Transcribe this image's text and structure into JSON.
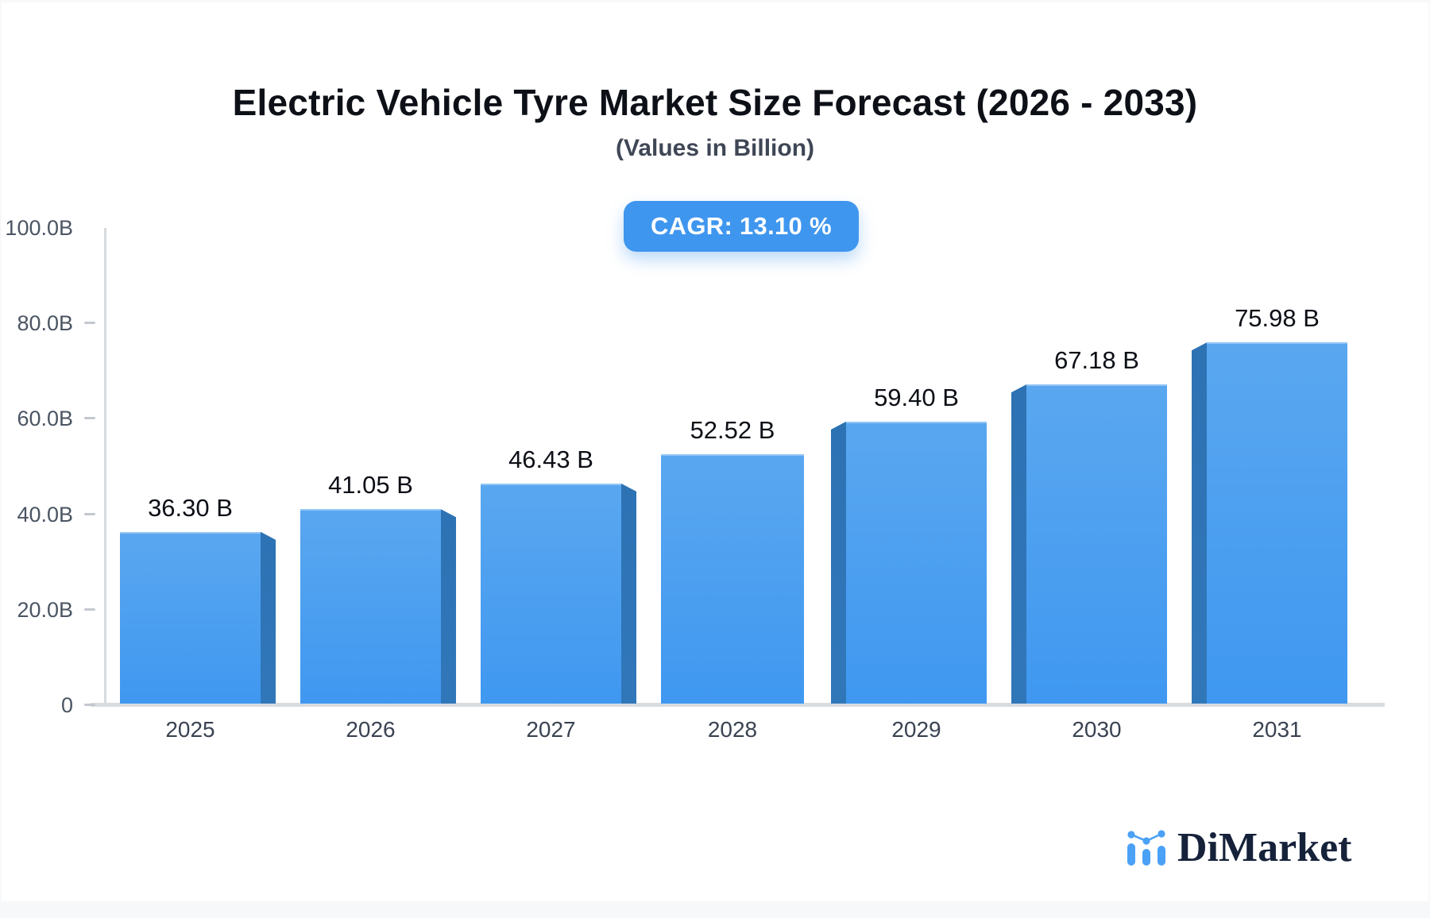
{
  "title": "Electric Vehicle Tyre Market Size Forecast (2026 - 2033)",
  "subtitle": "(Values in Billion)",
  "badge": {
    "label": "CAGR: 13.10 %"
  },
  "brand": {
    "name": "DiMarket"
  },
  "colors": {
    "bar_top": "#5aa7f0",
    "bar_bottom": "#3f98f0",
    "bar_side": "#2e75b6",
    "badge_blue": "#3f96ee",
    "brand_navy": "#16223a",
    "brand_icon_blue": "#4ba1f6",
    "axis_gray": "#d8dbdf"
  },
  "chart_data": {
    "type": "bar",
    "categories": [
      "2025",
      "2026",
      "2027",
      "2028",
      "2029",
      "2030",
      "2031"
    ],
    "values": [
      36.3,
      41.05,
      46.43,
      52.52,
      59.4,
      67.18,
      75.98
    ],
    "data_labels": [
      "36.30 B",
      "41.05 B",
      "46.43 B",
      "52.52 B",
      "59.40 B",
      "67.18 B",
      "75.98 B"
    ],
    "title": "Electric Vehicle Tyre Market Size Forecast (2026 - 2033)",
    "subtitle": "(Values in Billion)",
    "annotation": "CAGR: 13.10 %",
    "xlabel": "",
    "ylabel": "",
    "ylim": [
      0,
      100
    ],
    "y_ticks": [
      {
        "value": 100,
        "label": "100.0B"
      },
      {
        "value": 80,
        "label": "80.0B"
      },
      {
        "value": 60,
        "label": "60.0B"
      },
      {
        "value": 40,
        "label": "40.0B"
      },
      {
        "value": 20,
        "label": "20.0B"
      },
      {
        "value": 0,
        "label": "0"
      }
    ],
    "grid": false,
    "legend": false,
    "style": "3d-bevel-bars"
  }
}
